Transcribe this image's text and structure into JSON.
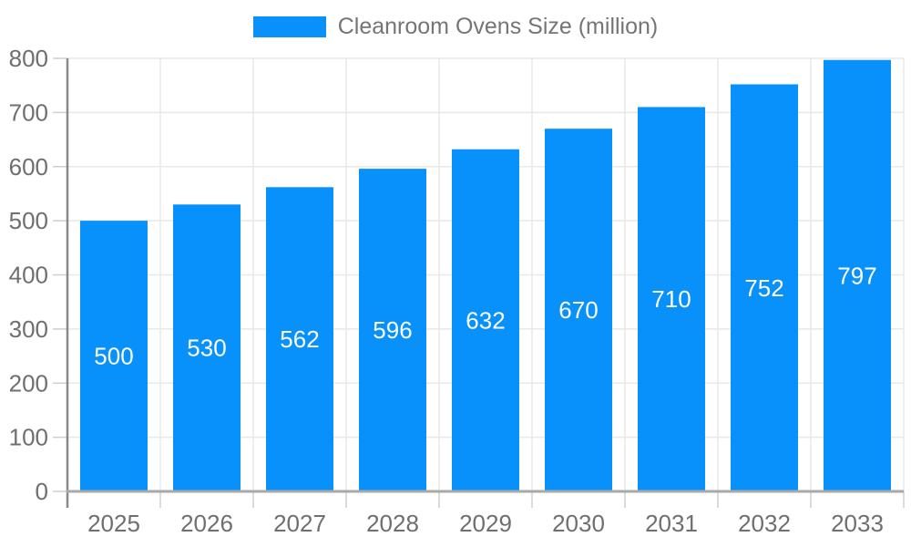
{
  "chart_data": {
    "type": "bar",
    "title": "Cleanroom Ovens Size (million)",
    "categories": [
      "2025",
      "2026",
      "2027",
      "2028",
      "2029",
      "2030",
      "2031",
      "2032",
      "2033"
    ],
    "series": [
      {
        "name": "Cleanroom Ovens Size (million)",
        "values": [
          500,
          530,
          562,
          596,
          632,
          670,
          710,
          752,
          797
        ]
      }
    ],
    "xlabel": "",
    "ylabel": "",
    "ylim": [
      0,
      800
    ],
    "ytick_step": 100,
    "grid": true,
    "legend_position": "top",
    "colors": [
      "#0890FB"
    ],
    "value_label_color": "#FFFFFF",
    "axis_text_color": "#6F6F6F",
    "legend_text_color": "#757575",
    "gridline_color": "#E8E8E8",
    "tick_color": "#CFCFCF",
    "y_axis_line_color": "#87898C",
    "x_axis_line_color": "#A9A9A9",
    "background": "#FFFFFF"
  }
}
